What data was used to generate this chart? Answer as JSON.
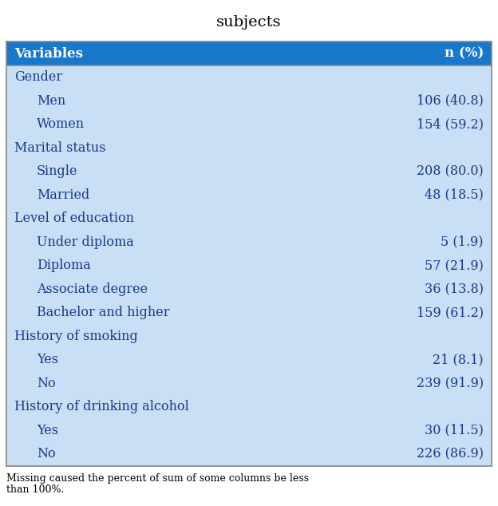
{
  "title": "subjects",
  "header": [
    "Variables",
    "n (%)"
  ],
  "header_bg": "#1878cc",
  "header_text_color": "#ffffff",
  "table_bg": "#c8dff5",
  "rows": [
    {
      "label": "Gender",
      "value": "",
      "indent": 0
    },
    {
      "label": "Men",
      "value": "106 (40.8)",
      "indent": 1
    },
    {
      "label": "Women",
      "value": "154 (59.2)",
      "indent": 1
    },
    {
      "label": "Marital status",
      "value": "",
      "indent": 0
    },
    {
      "label": "Single",
      "value": "208 (80.0)",
      "indent": 1
    },
    {
      "label": "Married",
      "value": "48 (18.5)",
      "indent": 1
    },
    {
      "label": "Level of education",
      "value": "",
      "indent": 0
    },
    {
      "label": "Under diploma",
      "value": "5 (1.9)",
      "indent": 1
    },
    {
      "label": "Diploma",
      "value": "57 (21.9)",
      "indent": 1
    },
    {
      "label": "Associate degree",
      "value": "36 (13.8)",
      "indent": 1
    },
    {
      "label": "Bachelor and higher",
      "value": "159 (61.2)",
      "indent": 1
    },
    {
      "label": "History of smoking",
      "value": "",
      "indent": 0
    },
    {
      "label": "Yes",
      "value": "21 (8.1)",
      "indent": 1
    },
    {
      "label": "No",
      "value": "239 (91.9)",
      "indent": 1
    },
    {
      "label": "History of drinking alcohol",
      "value": "",
      "indent": 0
    },
    {
      "label": "Yes",
      "value": "30 (11.5)",
      "indent": 1
    },
    {
      "label": "No",
      "value": "226 (86.9)",
      "indent": 1
    }
  ],
  "footnote1": "Missing caused the percent of sum of some columns be less",
  "footnote2": "than 100%.",
  "border_color": "#888888",
  "text_color": "#1a3a8a",
  "font_size": 11.5,
  "header_font_size": 12,
  "title_font_size": 14
}
